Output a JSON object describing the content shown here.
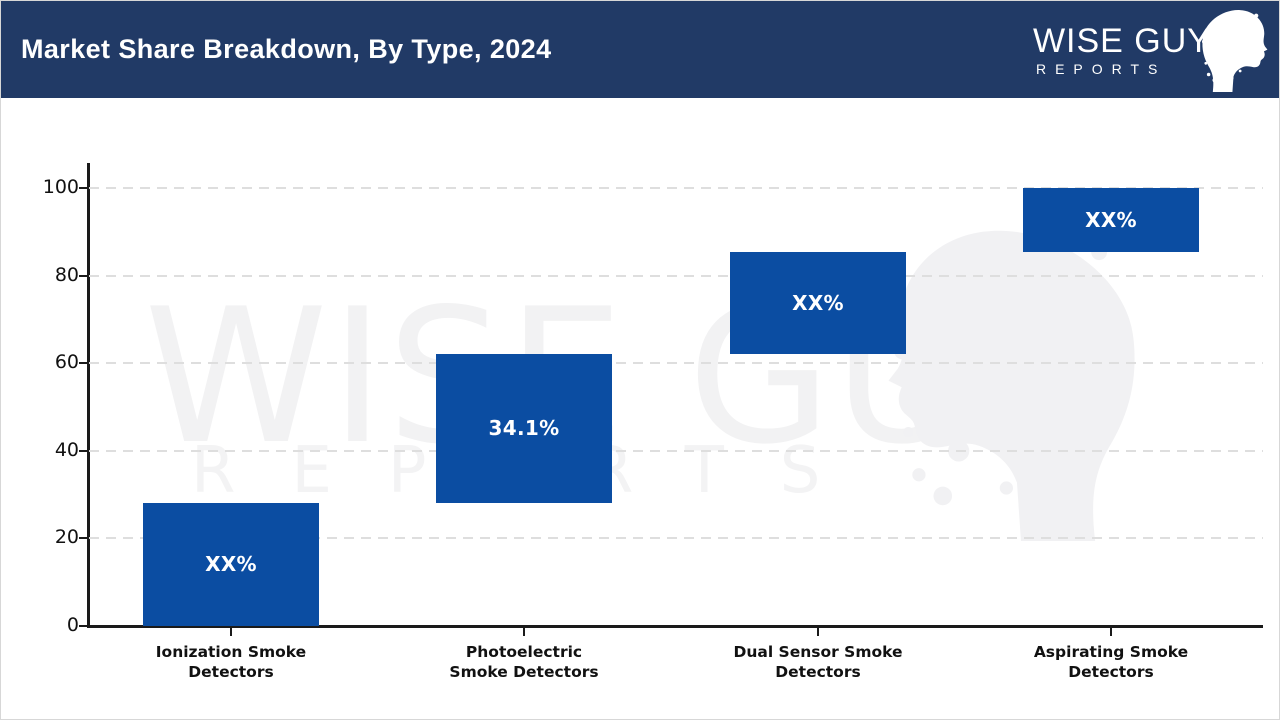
{
  "header": {
    "title": "Market Share Breakdown, By Type, 2024",
    "bg_color": "#213a66",
    "logo": {
      "line1": "WISE GUY",
      "line2": "REPORTS"
    }
  },
  "watermark": {
    "line1": "WISE GUY",
    "line2": "REPORTS"
  },
  "chart_data": {
    "type": "bar",
    "subtype": "waterfall",
    "title": "Market Share Breakdown, By Type, 2024",
    "categories": [
      "Ionization Smoke Detectors",
      "Photoelectric Smoke Detectors",
      "Dual Sensor Smoke Detectors",
      "Aspirating Smoke Detectors"
    ],
    "category_lines": [
      [
        "Ionization Smoke",
        "Detectors"
      ],
      [
        "Photoelectric",
        "Smoke Detectors"
      ],
      [
        "Dual Sensor Smoke",
        "Detectors"
      ],
      [
        "Aspirating Smoke",
        "Detectors"
      ]
    ],
    "segments": [
      {
        "start": 0,
        "end": 28.1,
        "label": "XX%"
      },
      {
        "start": 28.1,
        "end": 62.2,
        "label": "34.1%",
        "value": 34.1
      },
      {
        "start": 62.2,
        "end": 85.3,
        "label": "XX%"
      },
      {
        "start": 85.3,
        "end": 100,
        "label": "XX%"
      }
    ],
    "ylim": [
      0,
      100
    ],
    "yticks": [
      0,
      20,
      40,
      60,
      80,
      100
    ],
    "grid": "horizontal-dashed",
    "bar_color": "#0b4da2",
    "bar_label_color": "#ffffff"
  }
}
